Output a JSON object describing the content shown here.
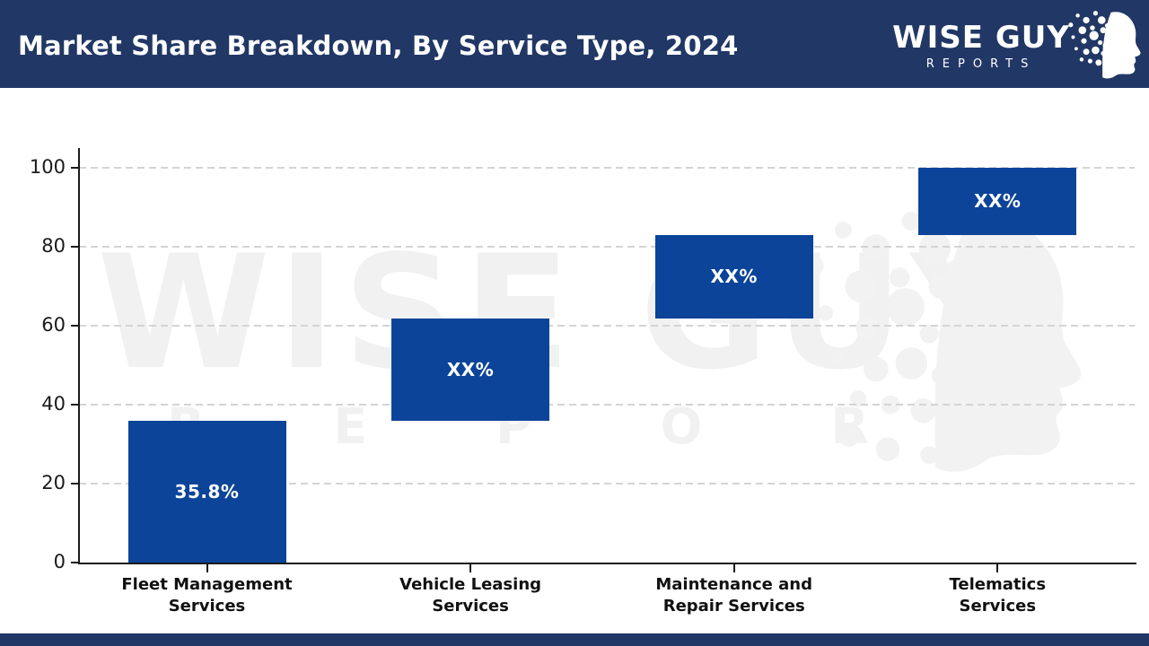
{
  "header": {
    "title": "Market Share Breakdown, By Service Type, 2024",
    "bg_color": "#213765",
    "logo": {
      "line1": "WISE GUY",
      "line2": "REPORTS"
    }
  },
  "watermark": {
    "line1": "WISE GUY",
    "line2": "R E P O R T S"
  },
  "chart_data": {
    "type": "bar",
    "subtype": "waterfall",
    "title": "Market Share Breakdown, By Service Type, 2024",
    "xlabel": "",
    "ylabel": "",
    "ylim": [
      0,
      100
    ],
    "yticks": [
      0,
      20,
      40,
      60,
      80,
      100
    ],
    "grid": "horizontal-dashed",
    "legend": "none",
    "bar_color": "#0b4499",
    "grid_color": "#d4d4d4",
    "axis_color": "#1a1a1a",
    "categories": [
      "Fleet Management\nServices",
      "Vehicle Leasing\nServices",
      "Maintenance and\nRepair Services",
      "Telematics\nServices"
    ],
    "segments": [
      {
        "category": "Fleet Management\nServices",
        "start": 0,
        "end": 35.8,
        "label": "35.8%"
      },
      {
        "category": "Vehicle Leasing\nServices",
        "start": 35.8,
        "end": 61.8,
        "label": "XX%"
      },
      {
        "category": "Maintenance and\nRepair Services",
        "start": 61.8,
        "end": 83.0,
        "label": "XX%"
      },
      {
        "category": "Telematics\nServices",
        "start": 83.0,
        "end": 100.0,
        "label": "XX%"
      }
    ]
  }
}
